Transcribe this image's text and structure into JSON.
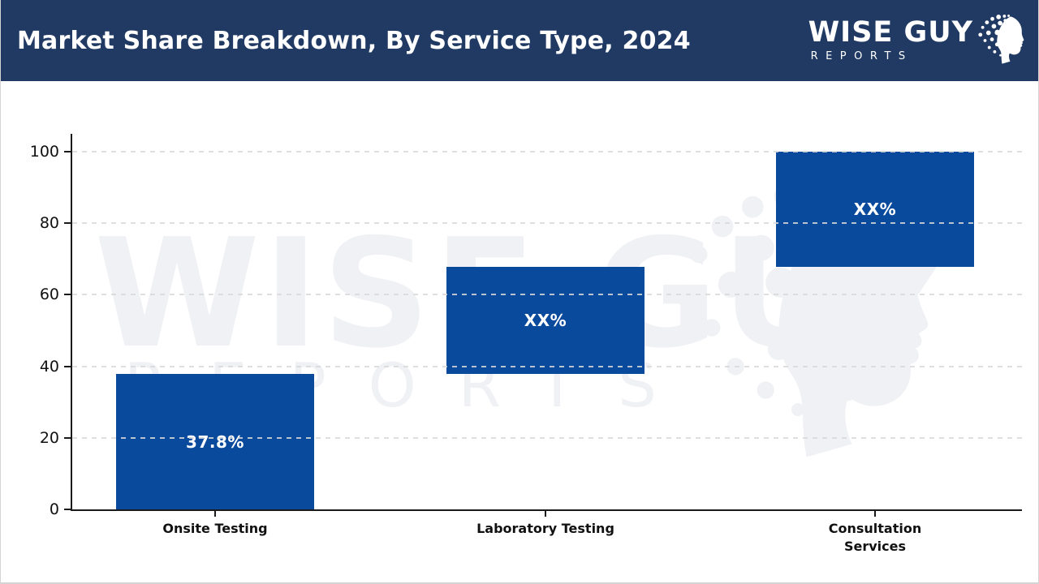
{
  "page": {
    "background": "#ffffff",
    "edge_border_color": "#d4d4d4"
  },
  "header": {
    "background": "#213a64",
    "title": "Market Share Breakdown, By Service Type, 2024",
    "logo": {
      "wordmark": "WISE GUY",
      "sub": "REPORTS",
      "icon": "dotted-head-profile-icon",
      "color": "#ffffff"
    }
  },
  "watermark": {
    "wordmark": "WISE GUY",
    "sub": "REPORTS",
    "icon": "dotted-head-profile-icon",
    "color": "#f0f1f4"
  },
  "chart_data": {
    "type": "bar",
    "subtype": "stacked-waterfall-floating-bars",
    "title": "Market Share Breakdown, By Service Type, 2024",
    "categories": [
      "Onsite Testing",
      "Laboratory Testing",
      "Consultation Services"
    ],
    "segments": [
      {
        "category": "Onsite Testing",
        "start": 0,
        "end": 37.8,
        "value_label": "37.8%"
      },
      {
        "category": "Laboratory Testing",
        "start": 37.8,
        "end": 67.7,
        "value_label": "XX%"
      },
      {
        "category": "Consultation Services",
        "start": 67.7,
        "end": 100,
        "value_label": "XX%"
      }
    ],
    "yticks": [
      0,
      20,
      40,
      60,
      80,
      100
    ],
    "ylim": [
      0,
      105
    ],
    "xlabel": "",
    "ylabel": "",
    "grid": true,
    "grid_style": "dashed",
    "grid_color": "#d9d9d9",
    "legend": "none",
    "bar_color": "#0a4a9d",
    "value_label_color": "#ffffff",
    "axis_color": "#1a1a1a"
  }
}
